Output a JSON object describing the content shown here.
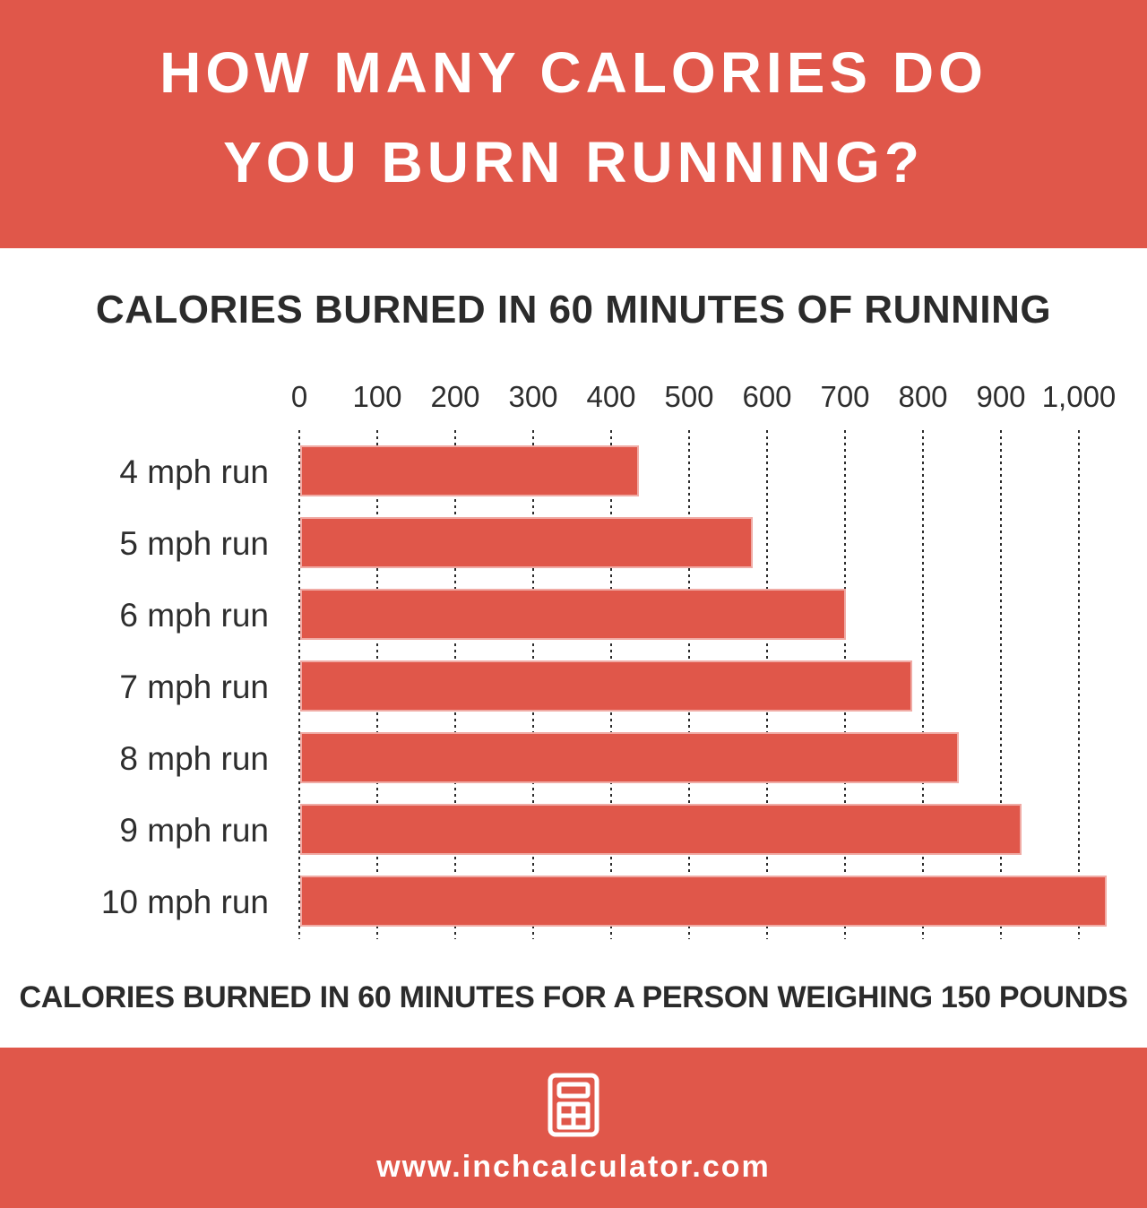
{
  "header": {
    "title_line1": "HOW MANY CALORIES DO",
    "title_line2": "YOU BURN RUNNING?"
  },
  "chart": {
    "title": "CALORIES BURNED IN 60 MINUTES OF RUNNING",
    "footnote": "CALORIES BURNED IN 60 MINUTES FOR A PERSON WEIGHING 150 POUNDS"
  },
  "chart_data": {
    "type": "bar",
    "orientation": "horizontal",
    "title": "CALORIES BURNED IN 60 MINUTES OF RUNNING",
    "categories": [
      "4 mph run",
      "5 mph run",
      "6 mph run",
      "7 mph run",
      "8 mph run",
      "9 mph run",
      "10 mph run"
    ],
    "values": [
      435,
      580,
      700,
      785,
      845,
      925,
      1035
    ],
    "unit": "calories",
    "xlabel": "",
    "ylabel": "",
    "xlim": [
      0,
      1050
    ],
    "x_ticks": [
      0,
      100,
      200,
      300,
      400,
      500,
      600,
      700,
      800,
      900,
      1000
    ],
    "x_tick_labels": [
      "0",
      "100",
      "200",
      "300",
      "400",
      "500",
      "600",
      "700",
      "800",
      "900",
      "1,000"
    ],
    "tick_position": "top",
    "grid": "vertical dotted",
    "legend": "none",
    "bar_color": "#E0574A",
    "caption": "CALORIES BURNED IN 60 MINUTES FOR A PERSON WEIGHING 150 POUNDS"
  },
  "footer": {
    "icon": "calculator-icon",
    "url": "www.inchcalculator.com"
  },
  "colors": {
    "accent_red": "#E0574A",
    "text_dark": "#2B2B2B",
    "white": "#FFFFFF"
  }
}
